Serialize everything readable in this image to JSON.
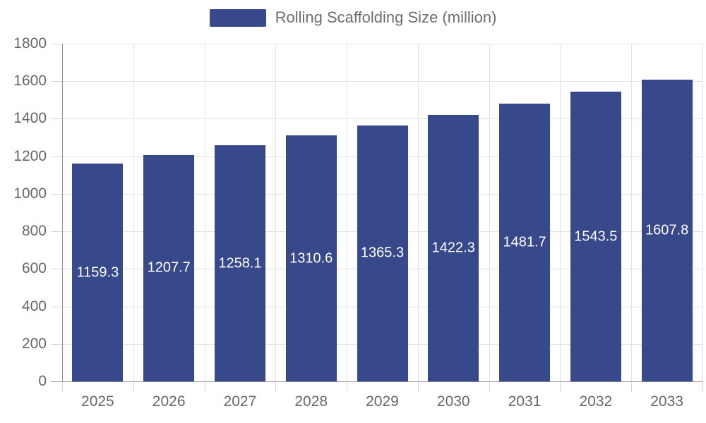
{
  "chart_data": {
    "type": "bar",
    "title": "Rolling Scaffolding Size (million)",
    "categories": [
      "2025",
      "2026",
      "2027",
      "2028",
      "2029",
      "2030",
      "2031",
      "2032",
      "2033"
    ],
    "values": [
      1159.3,
      1207.7,
      1258.1,
      1310.6,
      1365.3,
      1422.3,
      1481.7,
      1543.5,
      1607.8
    ],
    "value_labels": [
      "1159.3",
      "1207.7",
      "1258.1",
      "1310.6",
      "1365.3",
      "1422.3",
      "1481.7",
      "1543.5",
      "1607.8"
    ],
    "xlabel": "",
    "ylabel": "",
    "ylim": [
      0,
      1800
    ],
    "yticks": [
      0,
      200,
      400,
      600,
      800,
      1000,
      1200,
      1400,
      1600,
      1800
    ],
    "grid": true,
    "legend_position": "top-center",
    "bar_color": "#37498a",
    "value_label_color": "#ffffff"
  },
  "legend": {
    "label": "Rolling Scaffolding Size (million)",
    "swatch_color": "#37498a"
  }
}
